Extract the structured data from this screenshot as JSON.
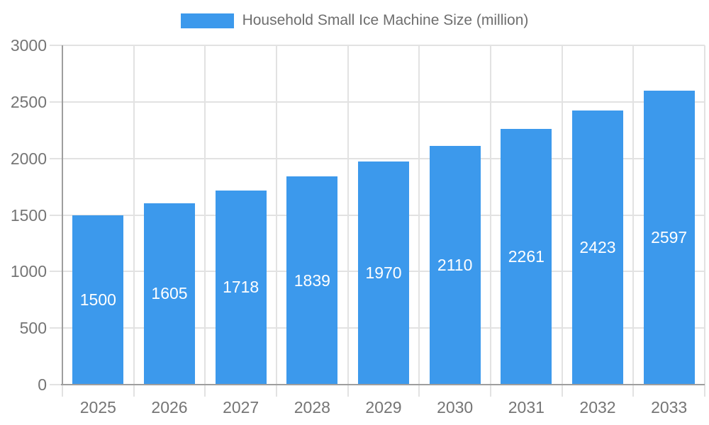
{
  "legend": {
    "label": "Household Small Ice Machine Size (million)"
  },
  "chart_data": {
    "type": "bar",
    "title": "",
    "series_name": "Household Small Ice Machine Size (million)",
    "categories": [
      "2025",
      "2026",
      "2027",
      "2028",
      "2029",
      "2030",
      "2031",
      "2032",
      "2033"
    ],
    "values": [
      1500,
      1605,
      1718,
      1839,
      1970,
      2110,
      2261,
      2423,
      2597
    ],
    "value_labels": [
      "1500",
      "1605",
      "1718",
      "1839",
      "1970",
      "2110",
      "2261",
      "2423",
      "2597"
    ],
    "yticks": [
      "0",
      "500",
      "1000",
      "1500",
      "2000",
      "2500",
      "3000"
    ],
    "ylim": [
      0,
      3000
    ],
    "xlabel": "",
    "ylabel": "",
    "grid": true,
    "legend_position": "top",
    "value_label_position": "inside-middle"
  },
  "colors": {
    "bar": "#3c99ec",
    "axis_line": "#9e9e9e",
    "gridline": "#e2e2e2",
    "tick_text": "#757575",
    "legend_text": "#6e6e6e",
    "value_label_text": "#ffffff",
    "background": "#ffffff"
  }
}
